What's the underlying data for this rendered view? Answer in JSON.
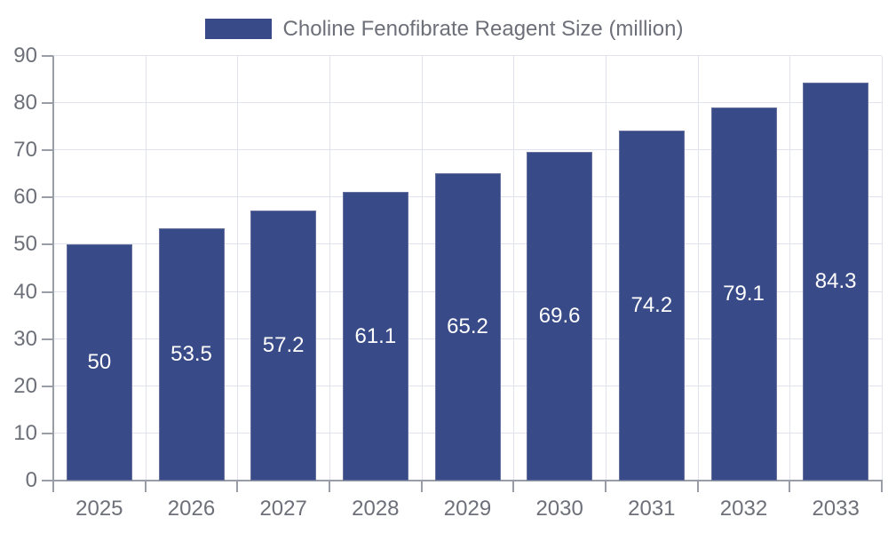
{
  "chart_data": {
    "type": "bar",
    "title": "",
    "legend": {
      "label": "Choline Fenofibrate Reagent Size (million)",
      "position": "top-center"
    },
    "categories": [
      "2025",
      "2026",
      "2027",
      "2028",
      "2029",
      "2030",
      "2031",
      "2032",
      "2033"
    ],
    "series": [
      {
        "name": "Choline Fenofibrate Reagent Size (million)",
        "values": [
          50,
          53.5,
          57.2,
          61.1,
          65.2,
          69.6,
          74.2,
          79.1,
          84.3
        ],
        "labels": [
          "50",
          "53.5",
          "57.2",
          "61.1",
          "65.2",
          "69.6",
          "74.2",
          "79.1",
          "84.3"
        ]
      }
    ],
    "xlabel": "",
    "ylabel": "",
    "ylim": [
      0,
      90
    ],
    "yticks": [
      0,
      10,
      20,
      30,
      40,
      50,
      60,
      70,
      80,
      90
    ],
    "grid": true,
    "colors": {
      "bar_fill": "#384A87",
      "bar_border": "#67719F",
      "grid_line": "#E0E3ED",
      "axis_line": "#999EA6",
      "tick_label": "#6E7079",
      "legend_text": "#6E7079",
      "value_label": "#FFFFFF",
      "background": "#FFFFFF"
    }
  }
}
